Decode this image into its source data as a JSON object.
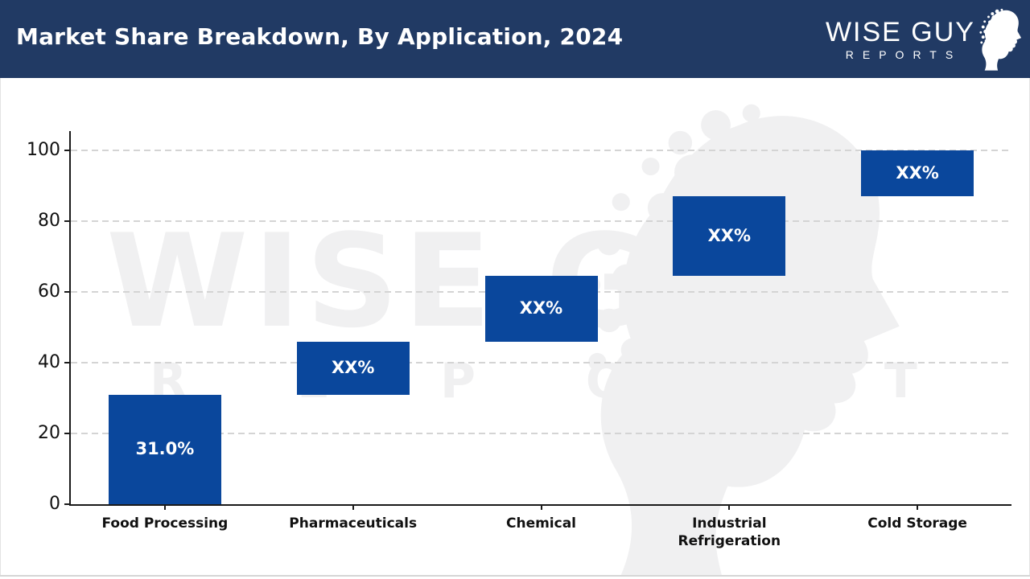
{
  "header": {
    "title": "Market Share Breakdown, By Application, 2024",
    "logo": {
      "line1": "WISE GUY",
      "line2": "REPORTS"
    }
  },
  "watermark": {
    "line1": "WISE GUY",
    "line2": "R E P O R T S"
  },
  "colors": {
    "header_bg": "#213a64",
    "title_text": "#ffffff",
    "bar": "#0a479c",
    "bar_label": "#ffffff",
    "grid": "#d4d4d4",
    "axis": "#1a1a1a",
    "watermark": "#f0f0f1"
  },
  "chart_data": {
    "type": "bar",
    "subtype": "waterfall",
    "title": "Market Share Breakdown, By Application, 2024",
    "xlabel": "",
    "ylabel": "",
    "categories": [
      "Food Processing",
      "Pharmaceuticals",
      "Chemical",
      "Industrial Refrigeration",
      "Cold Storage"
    ],
    "segments": [
      {
        "category": "Food Processing",
        "start": 0,
        "end": 31,
        "label": "31.0%"
      },
      {
        "category": "Pharmaceuticals",
        "start": 31,
        "end": 46,
        "label": "XX%"
      },
      {
        "category": "Chemical",
        "start": 46,
        "end": 64.5,
        "label": "XX%"
      },
      {
        "category": "Industrial Refrigeration",
        "start": 64.5,
        "end": 87,
        "label": "XX%"
      },
      {
        "category": "Cold Storage",
        "start": 87,
        "end": 100,
        "label": "XX%"
      }
    ],
    "ylim": [
      0,
      105
    ],
    "yticks": [
      0,
      20,
      40,
      60,
      80,
      100
    ],
    "grid": "horizontal-dashed",
    "legend": "none"
  }
}
